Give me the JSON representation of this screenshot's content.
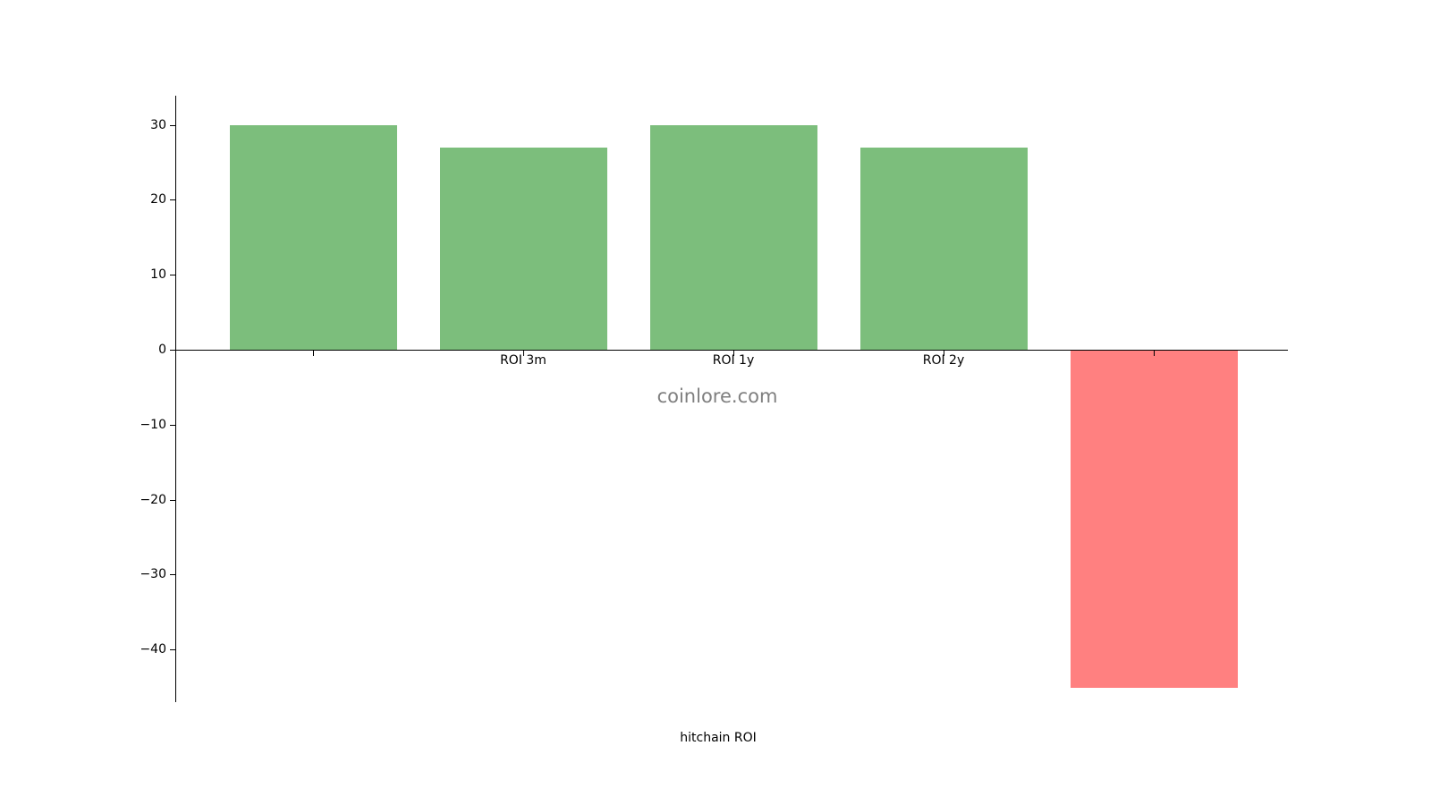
{
  "watermark": {
    "text": "coinlore.com",
    "color": "#7f7f7f"
  },
  "chart_data": {
    "type": "bar",
    "title": "hitchain ROI",
    "xlabel": "",
    "ylabel": "",
    "categories": [
      "",
      "ROI 3m",
      "ROI 1y",
      "ROI 2y",
      ""
    ],
    "values": [
      30,
      27,
      30,
      27,
      -45
    ],
    "bar_colors": [
      "#7cbe7c",
      "#7cbe7c",
      "#7cbe7c",
      "#7cbe7c",
      "#ff8080"
    ],
    "positive_color": "#7cbe7c",
    "negative_color": "#ff8080",
    "y_ticks": [
      30,
      20,
      10,
      0,
      -10,
      -20,
      -30,
      -40
    ],
    "y_tick_labels": [
      "30",
      "20",
      "10",
      "0",
      "−10",
      "−20",
      "−30",
      "−40"
    ],
    "ylim": [
      -47,
      34
    ],
    "grid": false,
    "legend": false,
    "axis_color": "#000000",
    "text_color": "#000000",
    "background_color": "#ffffff"
  }
}
